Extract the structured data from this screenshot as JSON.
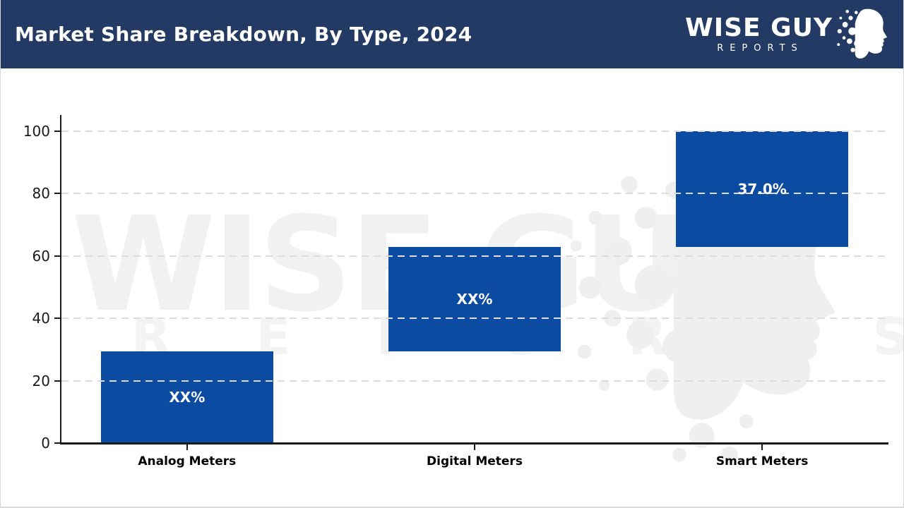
{
  "header": {
    "title": "Market Share Breakdown, By Type, 2024",
    "bg_color": "#233a64",
    "brand": {
      "name": "WISE GUY",
      "subtitle": "REPORTS"
    }
  },
  "watermark": {
    "line1": "WISE GUY",
    "line2": "R E P O R T S"
  },
  "chart_data": {
    "type": "bar",
    "subtype": "stacked-percentage-waterfall",
    "title": "Market Share Breakdown, By Type, 2024",
    "categories": [
      "Analog Meters",
      "Digital Meters",
      "Smart Meters"
    ],
    "bars": [
      {
        "category": "Analog Meters",
        "start": 0,
        "end": 29.5,
        "label": "XX%"
      },
      {
        "category": "Digital Meters",
        "start": 29.5,
        "end": 63.0,
        "label": "XX%"
      },
      {
        "category": "Smart Meters",
        "start": 63.0,
        "end": 100.0,
        "label": "37.0%"
      }
    ],
    "xlabel": "",
    "ylabel": "",
    "ylim": [
      0,
      100
    ],
    "yticks": [
      0,
      20,
      40,
      60,
      80,
      100
    ],
    "grid": true,
    "grid_style": "dashed",
    "legend_position": "none",
    "bar_color": "#0b4ba1",
    "bar_label_color": "#ffffff",
    "axis_color": "#1a1a1a",
    "grid_color": "#dcdcdc"
  }
}
